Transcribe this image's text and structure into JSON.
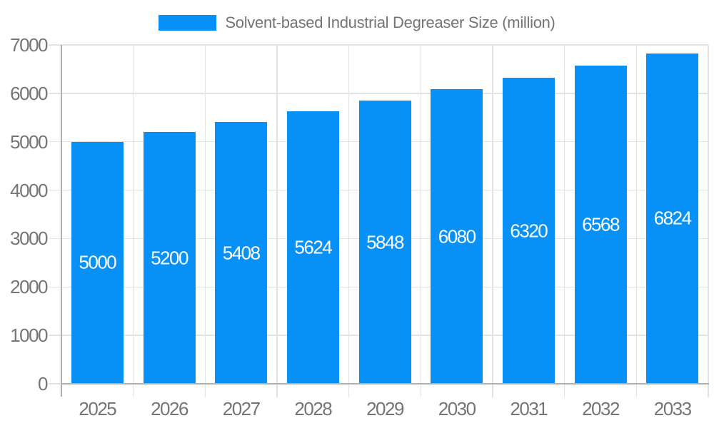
{
  "legend": {
    "label": "Solvent-based Industrial Degreaser Size (million)"
  },
  "colors": {
    "bar": "#0791F7",
    "axis_text": "#757575",
    "axis_line": "#B0B0B0",
    "gridline": "#E3E3E3",
    "bar_label": "#FFFFFF",
    "background": "#FFFFFF"
  },
  "chart_data": {
    "type": "bar",
    "title": "Solvent-based Industrial Degreaser Size (million)",
    "categories": [
      "2025",
      "2026",
      "2027",
      "2028",
      "2029",
      "2030",
      "2031",
      "2032",
      "2033"
    ],
    "series": [
      {
        "name": "Solvent-based Industrial Degreaser Size (million)",
        "values": [
          5000,
          5200,
          5408,
          5624,
          5848,
          6080,
          6320,
          6568,
          6824
        ]
      }
    ],
    "xlabel": "",
    "ylabel": "",
    "ylim": [
      0,
      7000
    ],
    "yticks": [
      0,
      1000,
      2000,
      3000,
      4000,
      5000,
      6000,
      7000
    ],
    "grid": true,
    "legend_position": "top",
    "data_labels_position": "inside-center"
  }
}
